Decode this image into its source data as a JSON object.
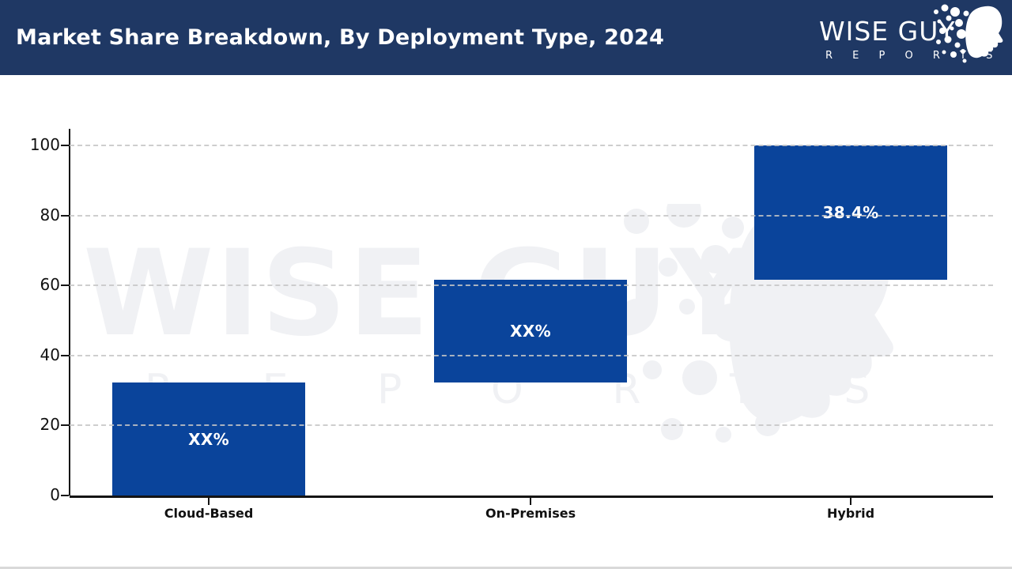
{
  "header": {
    "title": "Market Share Breakdown, By Deployment Type, 2024",
    "logo": {
      "line1": "WISE GUY",
      "line2": "R E P O R T S"
    }
  },
  "watermark": {
    "line1": "WISE GUY",
    "line2": "R E P O R T S"
  },
  "chart_data": {
    "type": "bar",
    "subtype": "floating-segment (waterfall of market share, segments stack to 100%)",
    "title": "Market Share Breakdown, By Deployment Type, 2024",
    "categories": [
      "Cloud-Based",
      "On-Premises",
      "Hybrid"
    ],
    "segments": [
      {
        "category": "Cloud-Based",
        "start": 0,
        "end": 32.3,
        "label": "XX%"
      },
      {
        "category": "On-Premises",
        "start": 32.3,
        "end": 61.6,
        "label": "XX%"
      },
      {
        "category": "Hybrid",
        "start": 61.6,
        "end": 100,
        "label": "38.4%"
      }
    ],
    "yticks": [
      0,
      20,
      40,
      60,
      80,
      100
    ],
    "ylim": [
      0,
      105
    ],
    "xlabel": "",
    "ylabel": "",
    "grid": "horizontal dashed, drawn over bars",
    "legend": "none",
    "bar_color": "#0a449b",
    "bar_label_color": "#ffffff"
  },
  "colors": {
    "header_bg": "#1f3864",
    "bar": "#0a449b",
    "grid": "#c6c6c6",
    "axis": "#141414",
    "watermark": "#f0f1f4",
    "bottom_line": "#d9d9d9"
  }
}
